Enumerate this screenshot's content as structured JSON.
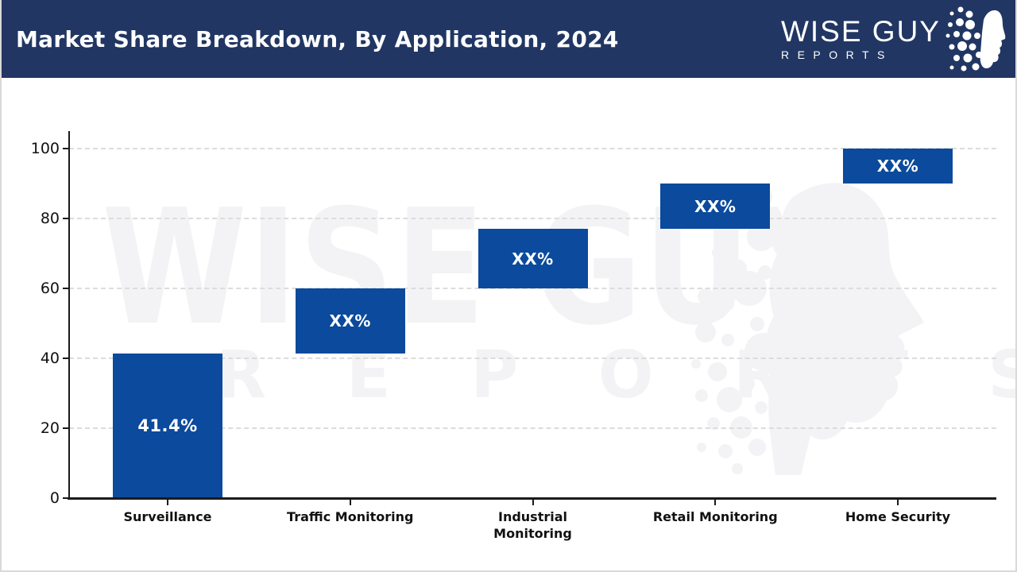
{
  "header": {
    "title": "Market Share Breakdown, By Application, 2024",
    "logo": {
      "line1": "WISE GUY",
      "line2": "REPORTS",
      "head_icon": "dotted-head-profile"
    }
  },
  "watermark": {
    "line1": "WISE GUY",
    "line2": "R E P O R T S",
    "head_icon": "dotted-head-profile"
  },
  "colors": {
    "header_bg": "#213663",
    "bar": "#0B4A9C",
    "grid": "#dcdcdc",
    "axis": "#1a1a1a",
    "bar_label_text": "#ffffff",
    "watermark": "#f3f3f5"
  },
  "chart_data": {
    "type": "bar",
    "subtype": "waterfall",
    "title": "Market Share Breakdown, By Application, 2024",
    "categories": [
      "Surveillance",
      "Traffic Monitoring",
      "Industrial Monitoring",
      "Retail Monitoring",
      "Home Security"
    ],
    "bars": [
      {
        "category": "Surveillance",
        "start": 0,
        "end": 41.4,
        "label": "41.4%"
      },
      {
        "category": "Traffic Monitoring",
        "start": 41.4,
        "end": 60.0,
        "label": "XX%"
      },
      {
        "category": "Industrial Monitoring",
        "start": 60.0,
        "end": 77.0,
        "label": "XX%"
      },
      {
        "category": "Retail Monitoring",
        "start": 77.0,
        "end": 90.0,
        "label": "XX%"
      },
      {
        "category": "Home Security",
        "start": 90.0,
        "end": 100.0,
        "label": "XX%"
      }
    ],
    "xlabel": "",
    "ylabel": "",
    "yticks": [
      0,
      20,
      40,
      60,
      80,
      100
    ],
    "ylim": [
      0,
      105
    ],
    "grid": "horizontal-dashed",
    "legend": "none",
    "bar_color": "#0B4A9C"
  }
}
